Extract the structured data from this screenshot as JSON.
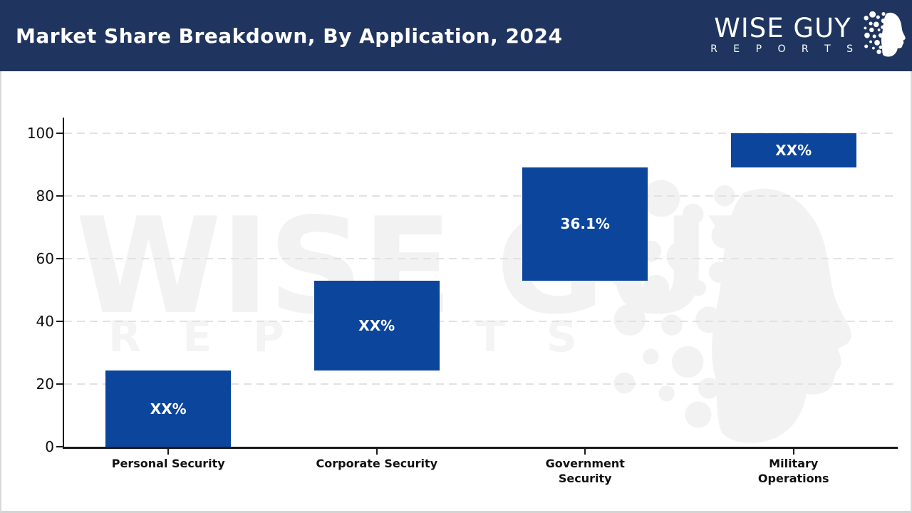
{
  "header": {
    "title": "Market Share Breakdown, By Application, 2024",
    "brand": {
      "line1": "WISE GUY",
      "line2": "R E P O R T S"
    }
  },
  "watermark": {
    "line1": "WISE GUY",
    "line2": "REPORTS"
  },
  "colors": {
    "header_bg": "#1f3560",
    "bar": "#0b459c",
    "axis": "#1a1a1a",
    "grid": "#e2e2e2",
    "watermark": "#f2f2f2",
    "label_text": "#ffffff"
  },
  "chart_data": {
    "type": "bar",
    "subtype": "floating-waterfall",
    "title": "Market Share Breakdown, By Application, 2024",
    "categories": [
      "Personal Security",
      "Corporate Security",
      "Government\nSecurity",
      "Military\nOperations"
    ],
    "series": [
      {
        "name": "Market Share (%)",
        "segments": [
          {
            "category": "Personal Security",
            "start": 0,
            "end": 24.3,
            "label": "XX%"
          },
          {
            "category": "Corporate Security",
            "start": 24.3,
            "end": 53.0,
            "label": "XX%"
          },
          {
            "category": "Government Security",
            "start": 53.0,
            "end": 89.1,
            "label": "36.1%"
          },
          {
            "category": "Military Operations",
            "start": 89.1,
            "end": 100,
            "label": "XX%"
          }
        ]
      }
    ],
    "xlabel": "",
    "ylabel": "",
    "ylim": [
      0,
      100
    ],
    "yticks": [
      0,
      20,
      40,
      60,
      80,
      100
    ],
    "grid": "horizontal-dashed",
    "legend": "none"
  }
}
